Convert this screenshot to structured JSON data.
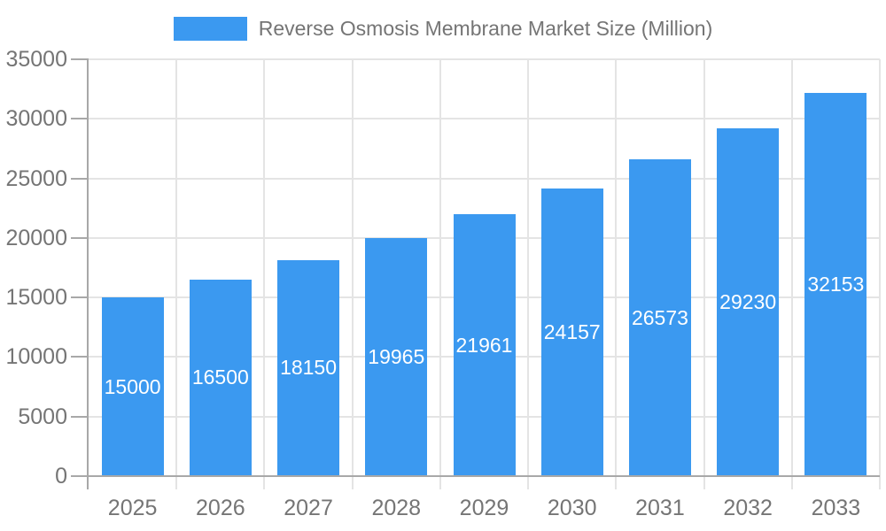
{
  "legend": {
    "label": "Reverse Osmosis Membrane Market Size (Million)"
  },
  "chart_data": {
    "type": "bar",
    "title": "Reverse Osmosis Membrane Market Size (Million)",
    "series_name": "Reverse Osmosis Membrane Market Size (Million)",
    "categories": [
      "2025",
      "2026",
      "2027",
      "2028",
      "2029",
      "2030",
      "2031",
      "2032",
      "2033"
    ],
    "values": [
      15000,
      16500,
      18150,
      19965,
      21961,
      24157,
      26573,
      29230,
      32153
    ],
    "bar_labels": [
      "15000",
      "16500",
      "18150",
      "19965",
      "21961",
      "24157",
      "26573",
      "29230",
      "32153"
    ],
    "xlabel": "",
    "ylabel": "",
    "ylim": [
      0,
      35000
    ],
    "y_ticks": [
      0,
      5000,
      10000,
      15000,
      20000,
      25000,
      30000,
      35000
    ],
    "y_tick_labels": [
      "0",
      "5000",
      "10000",
      "15000",
      "20000",
      "25000",
      "30000",
      "35000"
    ],
    "grid": true,
    "legend_position": "top-center",
    "bar_labels_visible": true,
    "colors": {
      "bar": "#3B99F0",
      "axis_line": "#A8A8A8",
      "gridline": "#E4E4E4",
      "tick_label": "#757575",
      "legend_text": "#757575",
      "bar_label": "#FFFFFF",
      "background": "#FFFFFF"
    }
  }
}
